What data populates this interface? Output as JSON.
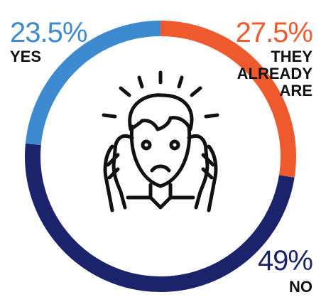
{
  "chart_data": {
    "type": "pie",
    "style": "donut",
    "slices": [
      {
        "label": "YES",
        "value": 23.5,
        "display": "23.5%",
        "color": "#3e8ad0"
      },
      {
        "label": "THEY\nALREADY\nARE",
        "value": 27.5,
        "display": "27.5%",
        "color": "#ee5a2d"
      },
      {
        "label": "NO",
        "value": 49,
        "display": "49%",
        "color": "#1b236b"
      }
    ],
    "center_icon": "stressed-person-icon",
    "title": ""
  }
}
